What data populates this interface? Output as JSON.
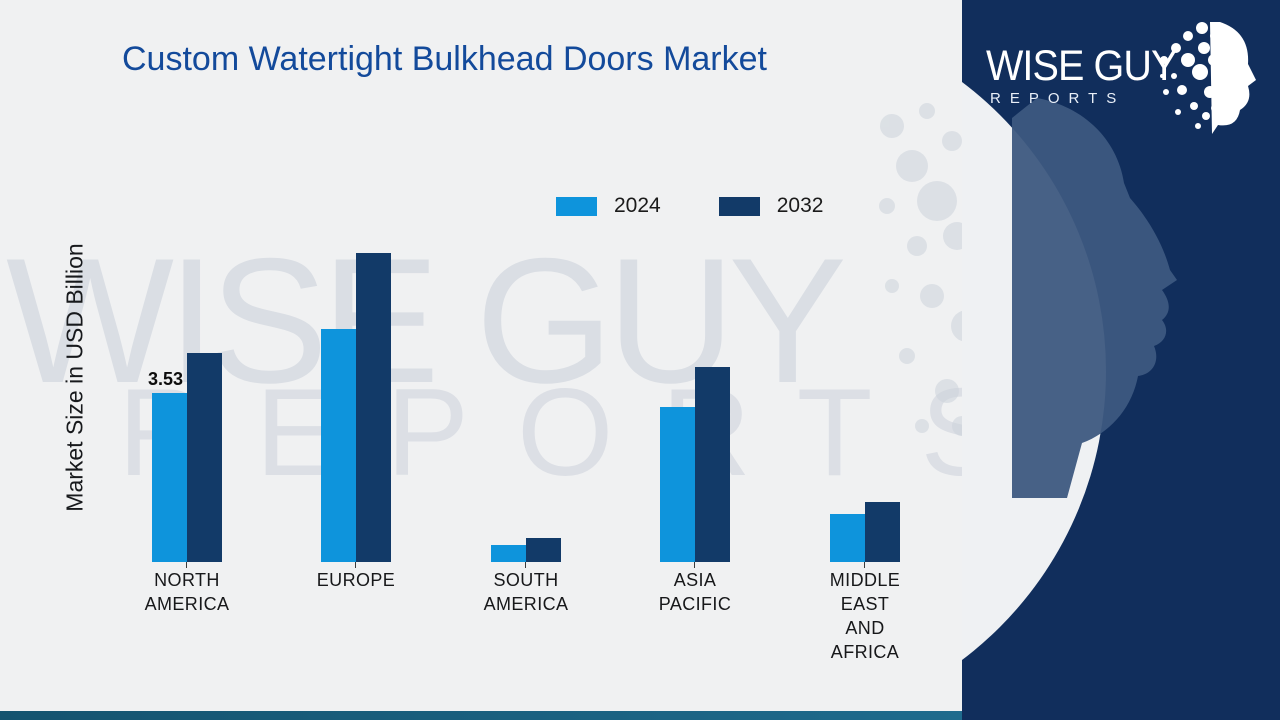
{
  "page": {
    "background": "#f0f1f2",
    "accent_teal": "#1a5f7e",
    "panel_navy": "#112e5c"
  },
  "header": {
    "title": "Custom Watertight Bulkhead Doors Market",
    "title_color": "#134a9b"
  },
  "watermark": {
    "line1": "WISE GUY",
    "line2": "REPORTS"
  },
  "logo": {
    "line1": "WISE GUY",
    "line2": "REPORTS"
  },
  "chart_data": {
    "type": "bar",
    "title": "Custom Watertight Bulkhead Doors Market",
    "xlabel": "",
    "ylabel": "Market Size in USD Billion",
    "ylim": [
      0,
      7
    ],
    "grid": false,
    "legend_position": "top",
    "categories": [
      "NORTH AMERICA",
      "EUROPE",
      "SOUTH AMERICA",
      "ASIA PACIFIC",
      "MIDDLE EAST AND AFRICA"
    ],
    "category_label_lines": [
      [
        "NORTH",
        "AMERICA"
      ],
      [
        "EUROPE"
      ],
      [
        "SOUTH",
        "AMERICA"
      ],
      [
        "ASIA",
        "PACIFIC"
      ],
      [
        "MIDDLE",
        "EAST",
        "AND",
        "AFRICA"
      ]
    ],
    "series": [
      {
        "name": "2024",
        "color": "#0e94dc",
        "values": [
          3.53,
          4.86,
          0.36,
          3.22,
          1.01
        ]
      },
      {
        "name": "2032",
        "color": "#123a68",
        "values": [
          4.35,
          6.43,
          0.51,
          4.07,
          1.24
        ]
      }
    ],
    "annotations": [
      {
        "series": "2024",
        "category": "NORTH AMERICA",
        "text": "3.53"
      }
    ]
  }
}
